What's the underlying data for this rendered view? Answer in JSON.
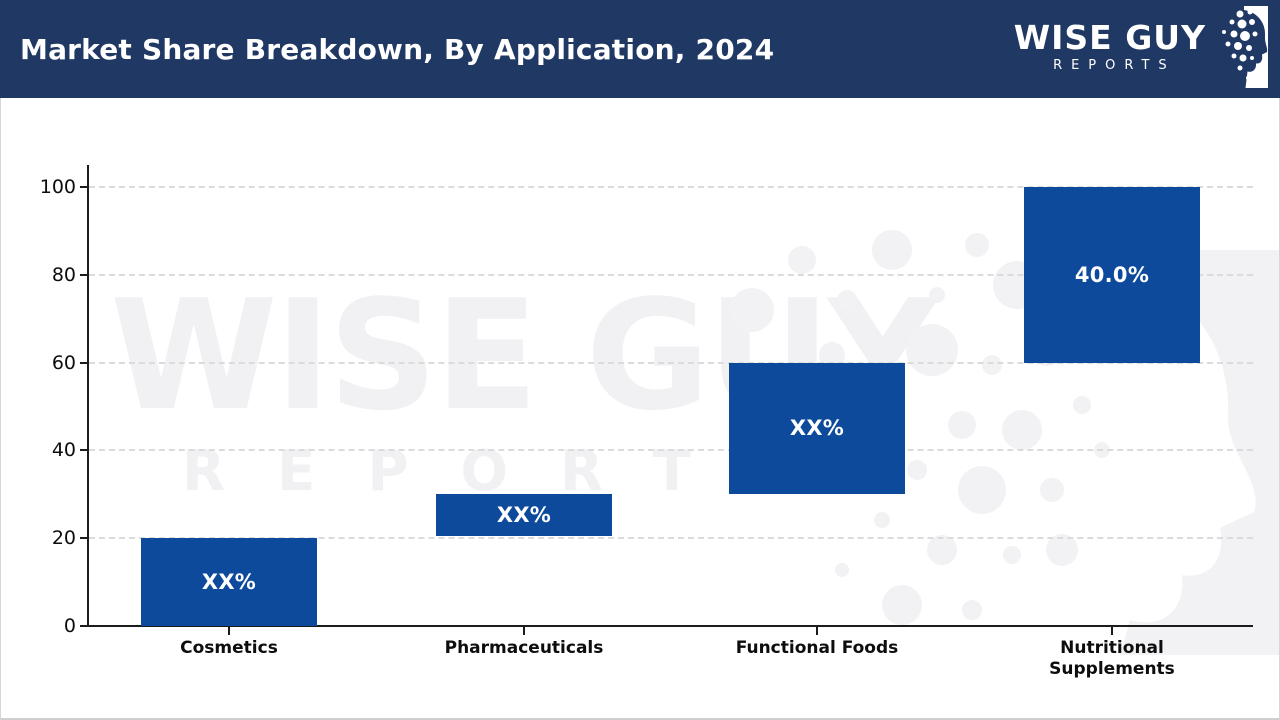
{
  "header": {
    "title": "Market Share Breakdown, By Application, 2024",
    "logo": {
      "name_top": "WISE GUY",
      "name_bottom": "REPORTS"
    }
  },
  "watermark": {
    "line1": "WISE GUY",
    "line2": "REPORTS"
  },
  "chart_data": {
    "type": "bar",
    "subtype": "waterfall",
    "title": "Market Share Breakdown, By Application, 2024",
    "categories": [
      "Cosmetics",
      "Pharmaceuticals",
      "Functional Foods",
      "Nutritional Supplements"
    ],
    "bars": [
      {
        "category": "Cosmetics",
        "start": 0,
        "end": 20,
        "label": "XX%"
      },
      {
        "category": "Pharmaceuticals",
        "start": 20.5,
        "end": 30,
        "label": "XX%"
      },
      {
        "category": "Functional Foods",
        "start": 30,
        "end": 60,
        "label": "XX%"
      },
      {
        "category": "Nutritional Supplements",
        "start": 60,
        "end": 100,
        "label": "40.0%"
      }
    ],
    "ylim": [
      0,
      100
    ],
    "yticks": [
      0,
      20,
      40,
      60,
      80,
      100
    ],
    "xlabel": "",
    "ylabel": "",
    "legend": "none",
    "grid": "dashed-horizontal",
    "bar_color": "#0d4a9c"
  },
  "colors": {
    "header_bg": "#1f3864",
    "bar": "#0d4a9c",
    "grid": "#dbdbdb",
    "axis": "#1c1c1c",
    "watermark": "#f1f1f4",
    "title_text": "#ffffff"
  }
}
